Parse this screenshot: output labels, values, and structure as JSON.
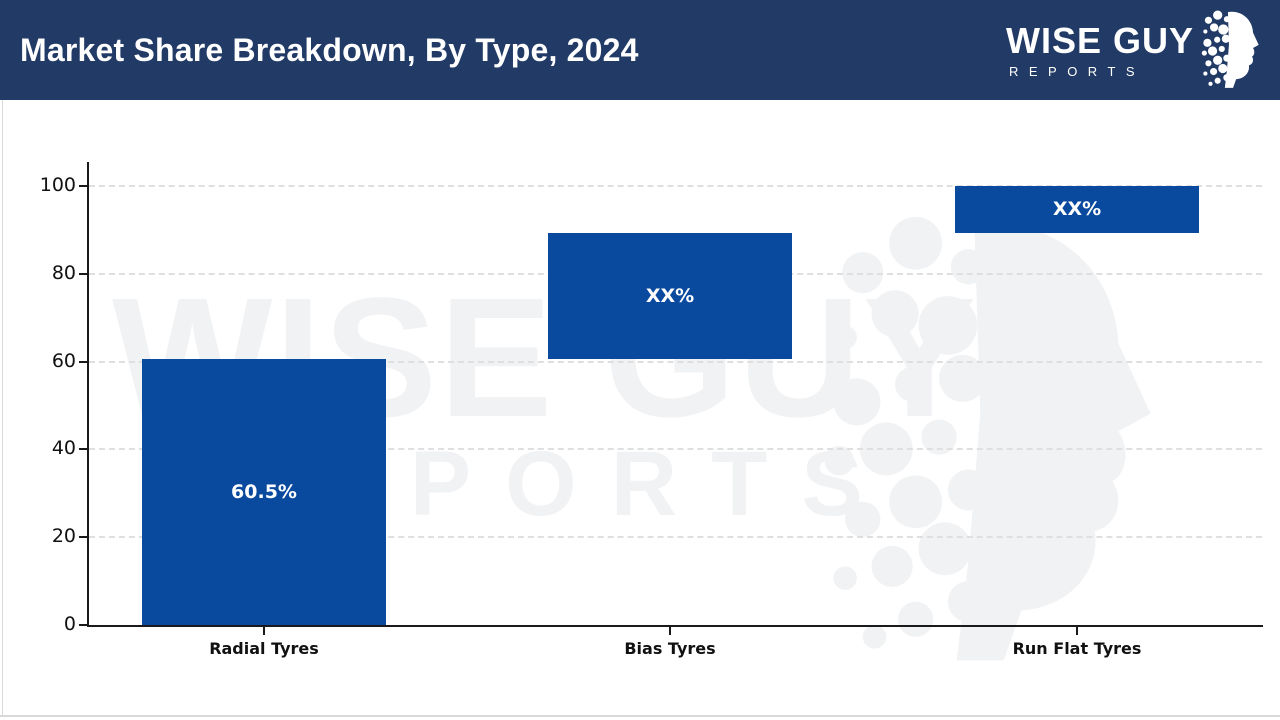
{
  "header": {
    "title": "Market Share Breakdown, By Type, 2024",
    "bg_color": "#223a66",
    "logo": {
      "line1": "WISE GUY",
      "line2": "REPORTS"
    }
  },
  "watermark": {
    "line1": "WISE GUY",
    "line2": "REPORTS"
  },
  "colors": {
    "header_bg": "#223a66",
    "bar_fill": "#0a4a9e",
    "bar_label": "#ffffff",
    "axis": "#1a1a1a",
    "gridline": "#dfdfdf",
    "watermark": "#f1f2f4",
    "chart_bg": "#ffffff"
  },
  "chart_data": {
    "type": "bar",
    "variant": "stacked-waterfall",
    "title": "Market Share Breakdown, By Type, 2024",
    "categories": [
      "Radial Tyres",
      "Bias Tyres",
      "Run Flat Tyres"
    ],
    "segments": [
      {
        "category": "Radial Tyres",
        "start": 0,
        "end": 60.5,
        "value": 60.5,
        "label": "60.5%"
      },
      {
        "category": "Bias Tyres",
        "start": 60.5,
        "end": 89.3,
        "value_estimate": 28.8,
        "label": "XX%"
      },
      {
        "category": "Run Flat Tyres",
        "start": 89.3,
        "end": 100,
        "value_estimate": 10.7,
        "label": "XX%"
      }
    ],
    "xlabel": "",
    "ylabel": "",
    "ylim": [
      0,
      100
    ],
    "yticks": [
      0,
      20,
      40,
      60,
      80,
      100
    ],
    "grid": "horizontal-dashed",
    "legend": "none",
    "bar_color": "#0a4a9e"
  }
}
